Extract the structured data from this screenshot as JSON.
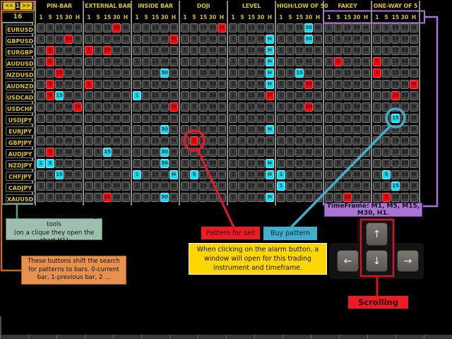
{
  "toolbar": {
    "prev_label": "<<",
    "bar_shift_value": "1",
    "next_label": ">>",
    "instrument_count": "16"
  },
  "columns": {
    "groups": [
      "PIN-BAR",
      "EXTERNAL BAR",
      "INSIDE BAR",
      "DOJI",
      "LEVEL",
      "HIGH/LOW OF 50",
      "FAKEY",
      "ONE-WAY OF 5"
    ],
    "timeframe_labels": [
      "1",
      "5",
      "15",
      "30",
      "H"
    ]
  },
  "pairs": [
    "EURUSD",
    "GBPUSD",
    "EURGBP",
    "AUDUSD",
    "NZDUSD",
    "AUDNZD",
    "USDCAD",
    "USDCHF",
    "USDJPY",
    "EURJPY",
    "GBPJPY",
    "AUDJPY",
    "NZDJPY",
    "CHFJPY",
    "CADJPY",
    "XAUUSD"
  ],
  "signals": {
    "legend": {
      "0": "none",
      "1": "sell-pattern (red)",
      "2": "buy-pattern (cyan)"
    },
    "rows": [
      {
        "pair": "EURUSD",
        "cells": [
          [
            0,
            0,
            0,
            0,
            0
          ],
          [
            0,
            0,
            0,
            1,
            0
          ],
          [
            0,
            0,
            0,
            0,
            0
          ],
          [
            0,
            0,
            0,
            0,
            1
          ],
          [
            0,
            0,
            0,
            0,
            0
          ],
          [
            0,
            0,
            0,
            2,
            0
          ],
          [
            0,
            0,
            0,
            0,
            0
          ],
          [
            0,
            0,
            0,
            0,
            0
          ]
        ]
      },
      {
        "pair": "GBPUSD",
        "cells": [
          [
            0,
            0,
            0,
            1,
            0
          ],
          [
            0,
            0,
            0,
            0,
            0
          ],
          [
            0,
            0,
            0,
            0,
            1
          ],
          [
            0,
            0,
            0,
            0,
            0
          ],
          [
            0,
            0,
            0,
            0,
            2
          ],
          [
            0,
            0,
            0,
            2,
            0
          ],
          [
            0,
            0,
            0,
            0,
            0
          ],
          [
            0,
            0,
            0,
            0,
            0
          ]
        ]
      },
      {
        "pair": "EURGBP",
        "cells": [
          [
            0,
            1,
            0,
            0,
            0
          ],
          [
            1,
            0,
            1,
            0,
            0
          ],
          [
            0,
            0,
            0,
            0,
            0
          ],
          [
            0,
            0,
            0,
            0,
            0
          ],
          [
            0,
            0,
            0,
            0,
            2
          ],
          [
            0,
            0,
            0,
            0,
            0
          ],
          [
            0,
            0,
            0,
            0,
            0
          ],
          [
            0,
            0,
            0,
            0,
            0
          ]
        ]
      },
      {
        "pair": "AUDUSD",
        "cells": [
          [
            0,
            1,
            0,
            0,
            0
          ],
          [
            0,
            0,
            0,
            0,
            0
          ],
          [
            0,
            0,
            0,
            0,
            0
          ],
          [
            0,
            0,
            0,
            0,
            0
          ],
          [
            0,
            0,
            0,
            0,
            2
          ],
          [
            0,
            0,
            0,
            0,
            0
          ],
          [
            0,
            1,
            0,
            0,
            0
          ],
          [
            1,
            0,
            0,
            0,
            0
          ]
        ]
      },
      {
        "pair": "NZDUSD",
        "cells": [
          [
            0,
            0,
            1,
            0,
            0
          ],
          [
            0,
            0,
            0,
            0,
            0
          ],
          [
            0,
            0,
            0,
            2,
            0
          ],
          [
            0,
            0,
            0,
            0,
            0
          ],
          [
            0,
            0,
            0,
            0,
            2
          ],
          [
            0,
            0,
            2,
            0,
            0
          ],
          [
            0,
            0,
            0,
            0,
            0
          ],
          [
            1,
            0,
            0,
            0,
            0
          ]
        ]
      },
      {
        "pair": "AUDNZD",
        "cells": [
          [
            0,
            1,
            0,
            0,
            0
          ],
          [
            1,
            0,
            0,
            0,
            0
          ],
          [
            0,
            0,
            0,
            0,
            0
          ],
          [
            0,
            0,
            0,
            0,
            0
          ],
          [
            0,
            0,
            0,
            0,
            2
          ],
          [
            0,
            0,
            0,
            1,
            0
          ],
          [
            0,
            0,
            0,
            0,
            0
          ],
          [
            0,
            0,
            0,
            0,
            1
          ]
        ]
      },
      {
        "pair": "USDCAD",
        "cells": [
          [
            0,
            1,
            2,
            0,
            0
          ],
          [
            0,
            0,
            0,
            0,
            0
          ],
          [
            2,
            0,
            0,
            0,
            0
          ],
          [
            0,
            0,
            0,
            0,
            0
          ],
          [
            0,
            0,
            0,
            0,
            1
          ],
          [
            0,
            0,
            0,
            0,
            0
          ],
          [
            0,
            0,
            0,
            0,
            0
          ],
          [
            0,
            0,
            1,
            0,
            0
          ]
        ]
      },
      {
        "pair": "USDCHF",
        "cells": [
          [
            0,
            0,
            0,
            0,
            1
          ],
          [
            0,
            0,
            0,
            0,
            0
          ],
          [
            0,
            0,
            0,
            0,
            1
          ],
          [
            0,
            0,
            0,
            0,
            0
          ],
          [
            0,
            0,
            0,
            0,
            0
          ],
          [
            0,
            0,
            0,
            1,
            0
          ],
          [
            0,
            0,
            0,
            0,
            0
          ],
          [
            0,
            0,
            0,
            0,
            0
          ]
        ]
      },
      {
        "pair": "USDJPY",
        "cells": [
          [
            0,
            0,
            0,
            0,
            0
          ],
          [
            0,
            0,
            0,
            0,
            0
          ],
          [
            0,
            0,
            0,
            0,
            0
          ],
          [
            0,
            0,
            0,
            0,
            0
          ],
          [
            0,
            0,
            0,
            0,
            0
          ],
          [
            0,
            0,
            0,
            0,
            0
          ],
          [
            0,
            0,
            0,
            0,
            0
          ],
          [
            0,
            0,
            2,
            0,
            0
          ]
        ]
      },
      {
        "pair": "EURJPY",
        "cells": [
          [
            0,
            0,
            0,
            0,
            0
          ],
          [
            0,
            0,
            0,
            0,
            0
          ],
          [
            0,
            0,
            0,
            2,
            0
          ],
          [
            0,
            0,
            0,
            0,
            0
          ],
          [
            0,
            0,
            0,
            0,
            2
          ],
          [
            0,
            0,
            0,
            0,
            0
          ],
          [
            0,
            0,
            0,
            0,
            0
          ],
          [
            0,
            0,
            0,
            0,
            0
          ]
        ]
      },
      {
        "pair": "GBPJPY",
        "cells": [
          [
            0,
            0,
            0,
            0,
            0
          ],
          [
            0,
            0,
            0,
            0,
            0
          ],
          [
            0,
            0,
            0,
            0,
            0
          ],
          [
            0,
            1,
            0,
            0,
            0
          ],
          [
            0,
            0,
            0,
            0,
            0
          ],
          [
            0,
            0,
            0,
            0,
            0
          ],
          [
            0,
            0,
            0,
            0,
            0
          ],
          [
            0,
            0,
            0,
            0,
            0
          ]
        ]
      },
      {
        "pair": "AUDJPY",
        "cells": [
          [
            0,
            1,
            0,
            0,
            0
          ],
          [
            0,
            0,
            2,
            0,
            0
          ],
          [
            0,
            0,
            0,
            2,
            0
          ],
          [
            0,
            0,
            0,
            0,
            0
          ],
          [
            0,
            0,
            0,
            0,
            0
          ],
          [
            0,
            0,
            0,
            0,
            0
          ],
          [
            0,
            0,
            0,
            0,
            0
          ],
          [
            0,
            0,
            0,
            0,
            0
          ]
        ]
      },
      {
        "pair": "NZDJPY",
        "cells": [
          [
            2,
            2,
            0,
            0,
            0
          ],
          [
            0,
            0,
            0,
            0,
            0
          ],
          [
            0,
            0,
            0,
            2,
            0
          ],
          [
            0,
            0,
            0,
            0,
            0
          ],
          [
            0,
            0,
            0,
            0,
            2
          ],
          [
            0,
            0,
            0,
            0,
            0
          ],
          [
            0,
            0,
            0,
            0,
            0
          ],
          [
            0,
            0,
            0,
            0,
            0
          ]
        ]
      },
      {
        "pair": "CHFJPY",
        "cells": [
          [
            0,
            0,
            2,
            0,
            0
          ],
          [
            0,
            0,
            0,
            0,
            0
          ],
          [
            2,
            0,
            0,
            0,
            2
          ],
          [
            0,
            2,
            0,
            0,
            0
          ],
          [
            0,
            0,
            0,
            0,
            2
          ],
          [
            2,
            0,
            0,
            0,
            0
          ],
          [
            0,
            0,
            0,
            0,
            0
          ],
          [
            0,
            2,
            0,
            0,
            0
          ]
        ]
      },
      {
        "pair": "CADJPY",
        "cells": [
          [
            0,
            0,
            0,
            0,
            0
          ],
          [
            0,
            0,
            0,
            0,
            0
          ],
          [
            0,
            0,
            0,
            0,
            0
          ],
          [
            0,
            0,
            0,
            0,
            0
          ],
          [
            0,
            0,
            0,
            0,
            0
          ],
          [
            2,
            0,
            0,
            0,
            0
          ],
          [
            0,
            0,
            0,
            0,
            0
          ],
          [
            0,
            0,
            2,
            0,
            0
          ]
        ]
      },
      {
        "pair": "XAUUSD",
        "cells": [
          [
            0,
            0,
            0,
            0,
            0
          ],
          [
            0,
            0,
            1,
            0,
            0
          ],
          [
            0,
            0,
            0,
            2,
            0
          ],
          [
            0,
            0,
            0,
            0,
            0
          ],
          [
            0,
            0,
            0,
            0,
            2
          ],
          [
            0,
            0,
            0,
            0,
            0
          ],
          [
            0,
            0,
            1,
            0,
            0
          ],
          [
            0,
            1,
            0,
            0,
            0
          ]
        ]
      }
    ]
  },
  "highlights": {
    "sell_circle": {
      "pair": "GBPJPY",
      "group": "DOJI",
      "timeframe": "5"
    },
    "buy_circle": {
      "pair": "USDJPY",
      "group": "ONE-WAY OF 5",
      "timeframe": "15"
    }
  },
  "annotations": {
    "tools_note_line1": "These are buttons of trading tools",
    "tools_note_line2": "(on a clique they open the chart H1)",
    "shift_note": "These buttons shift the search for patterns to bars. 0-current bar, 1-previous bar, 2 ...",
    "sell_label": "Pattern for sell",
    "buy_label": "Buy pattern",
    "alarm_note": "When clicking on the alarm button, a window will open for this trading instrument and timeframe.",
    "timeframe_note": "TimeFrame: M1, M5, M15, M30, H1.",
    "scrolling_label": "Scrolling"
  },
  "keypad": {
    "up": "↑",
    "down": "↓",
    "left": "←",
    "right": "→"
  },
  "colors": {
    "sell": "#fb0007",
    "buy": "#00e0f8",
    "header_yellow": "#d9c121",
    "callout_teal": "#9fbfae",
    "callout_orange": "#e8914f",
    "callout_yellow": "#ffd700",
    "callout_purple": "#a974d4",
    "callout_blue": "#42aecd",
    "callout_red": "#ed1c24"
  }
}
